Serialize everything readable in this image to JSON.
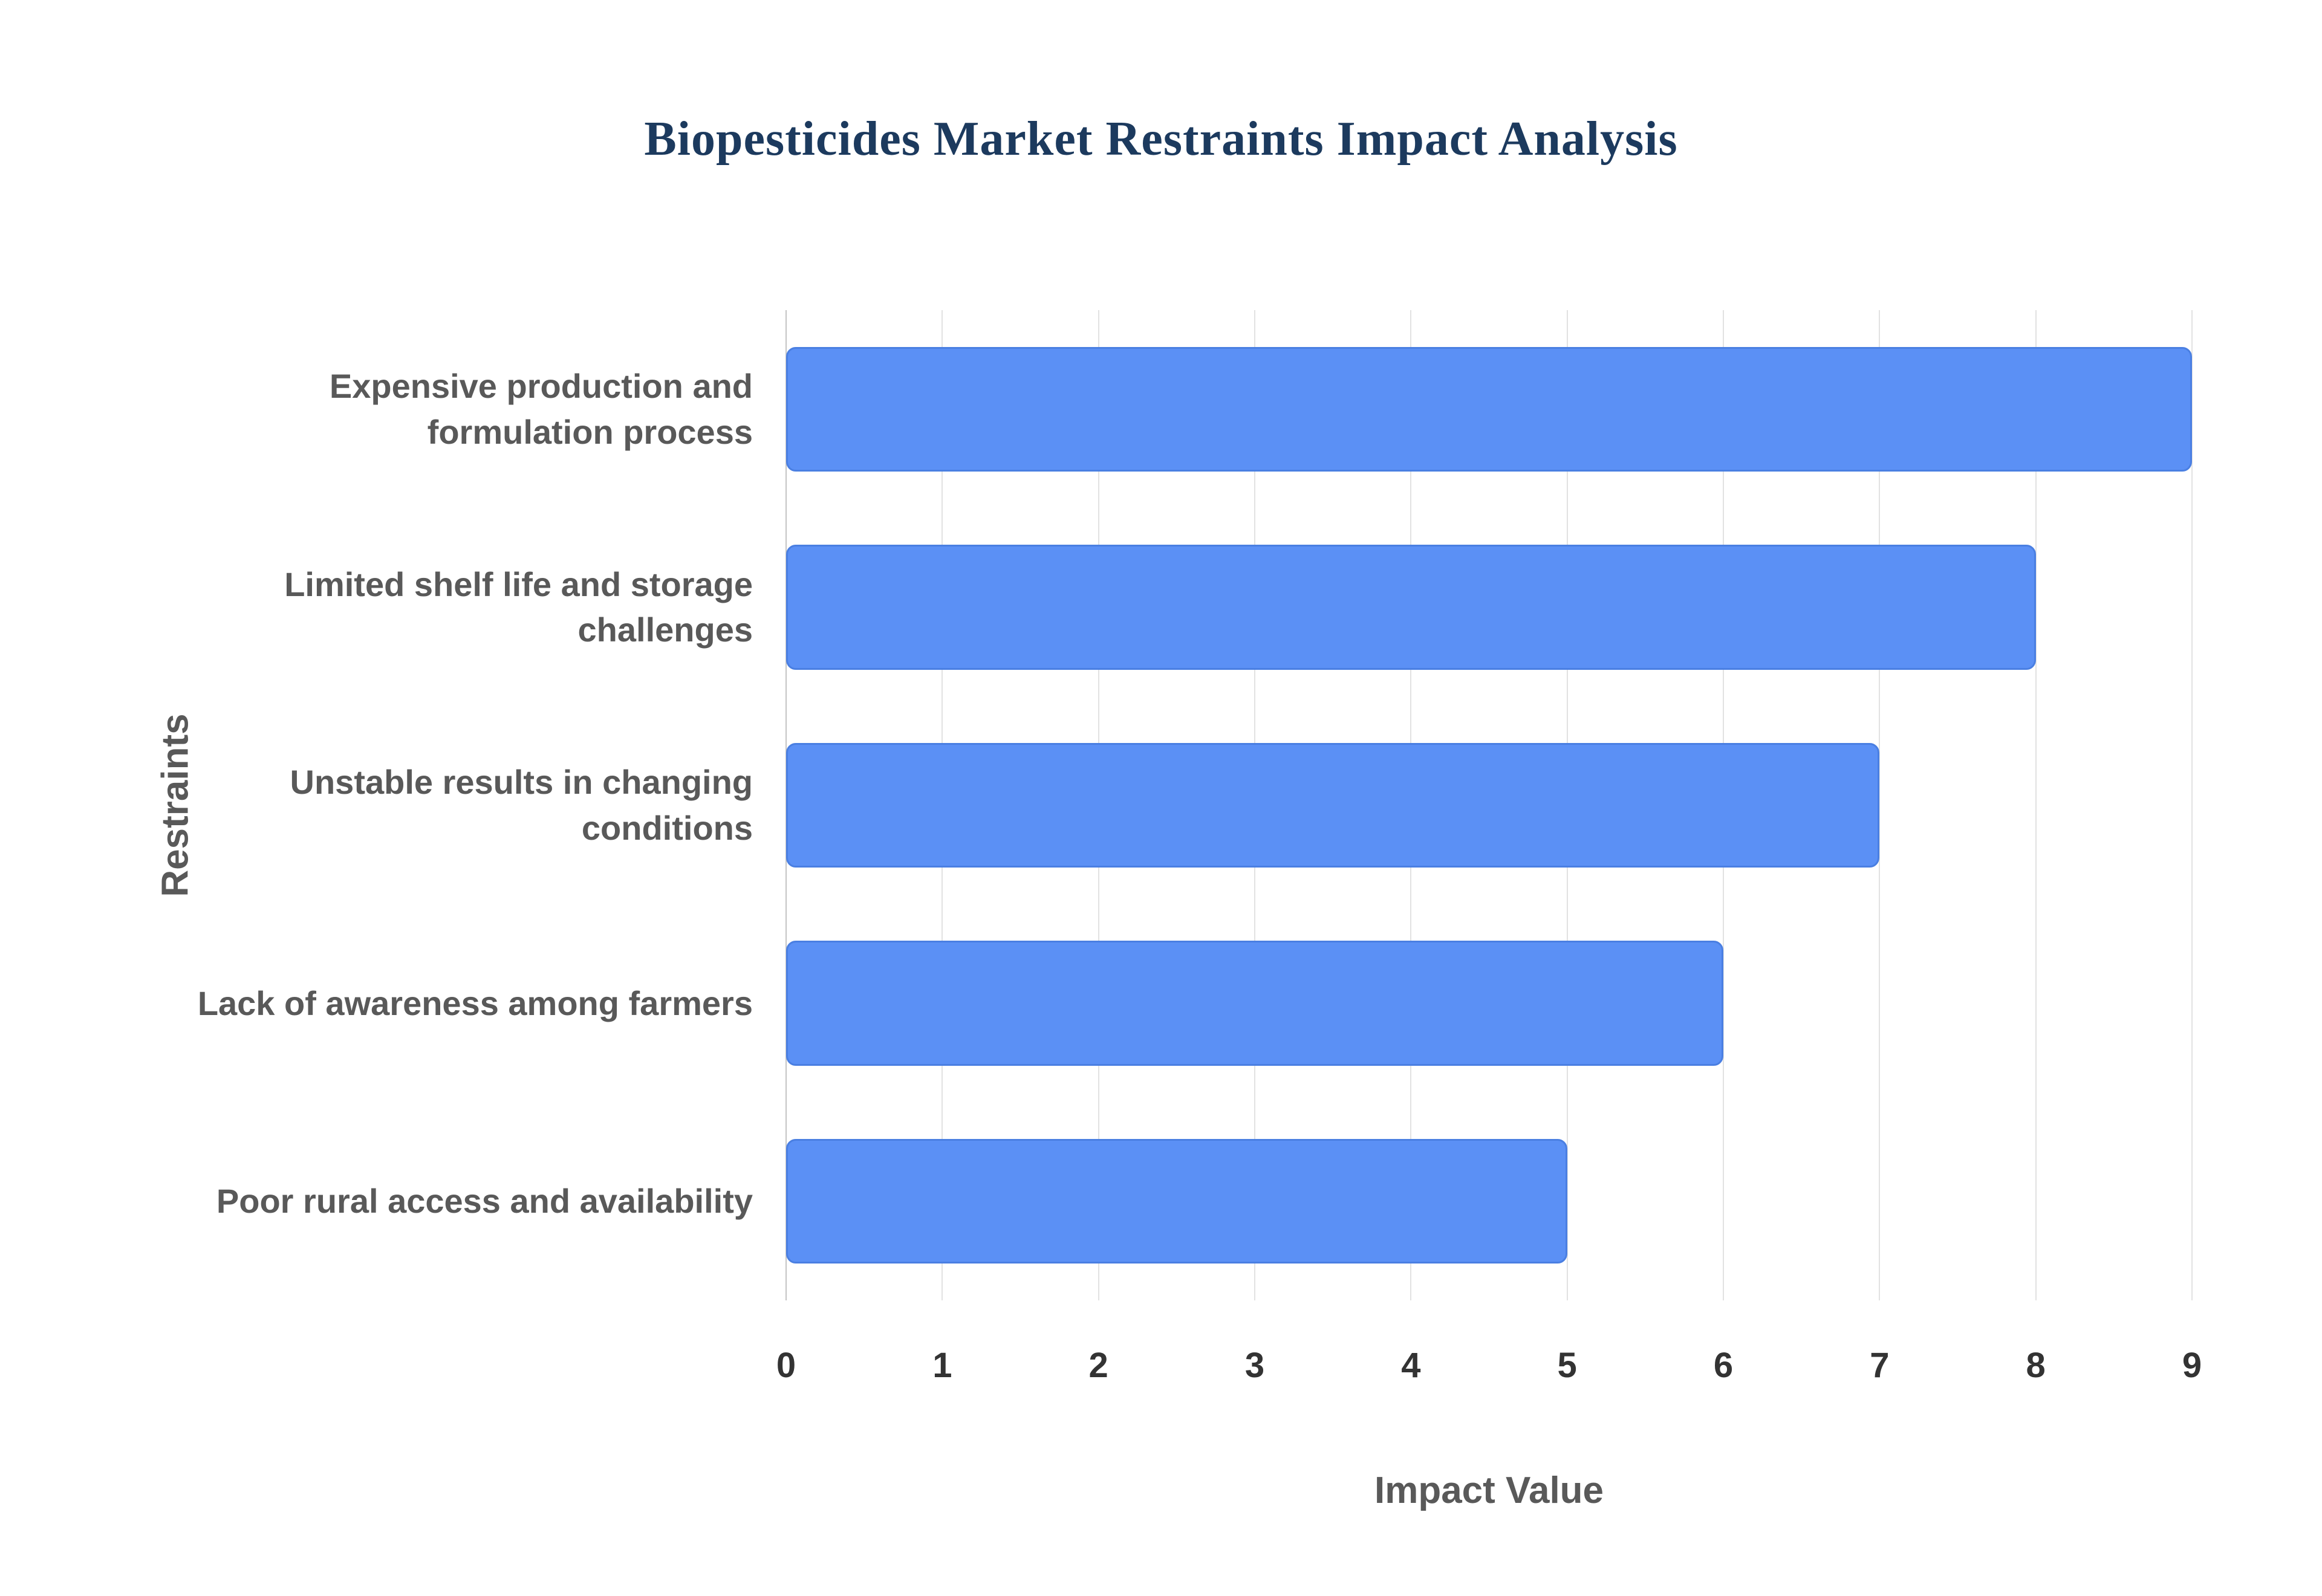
{
  "title": "Biopesticides Market Restraints Impact Analysis",
  "chart_data": {
    "type": "bar",
    "orientation": "horizontal",
    "title": "Biopesticides Market Restraints Impact Analysis",
    "categories": [
      "Expensive production and formulation process",
      "Limited shelf life and storage challenges",
      "Unstable results in changing conditions",
      "Lack of awareness among farmers",
      "Poor rural access and availability"
    ],
    "values": [
      9,
      8,
      7,
      6,
      5
    ],
    "xlabel": "Impact Value",
    "ylabel": "Restraints",
    "xlim": [
      0,
      9
    ],
    "xticks": [
      0,
      1,
      2,
      3,
      4,
      5,
      6,
      7,
      8,
      9
    ],
    "grid": true,
    "legend": false,
    "colors": {
      "bar_fill": "#5b90f5",
      "bar_border": "#4a7fe2",
      "title": "#1c3a5e",
      "axis_title": "#595959",
      "category_label": "#595959",
      "tick_label": "#333333",
      "gridline": "#e2e2e2",
      "background": "#ffffff"
    }
  }
}
